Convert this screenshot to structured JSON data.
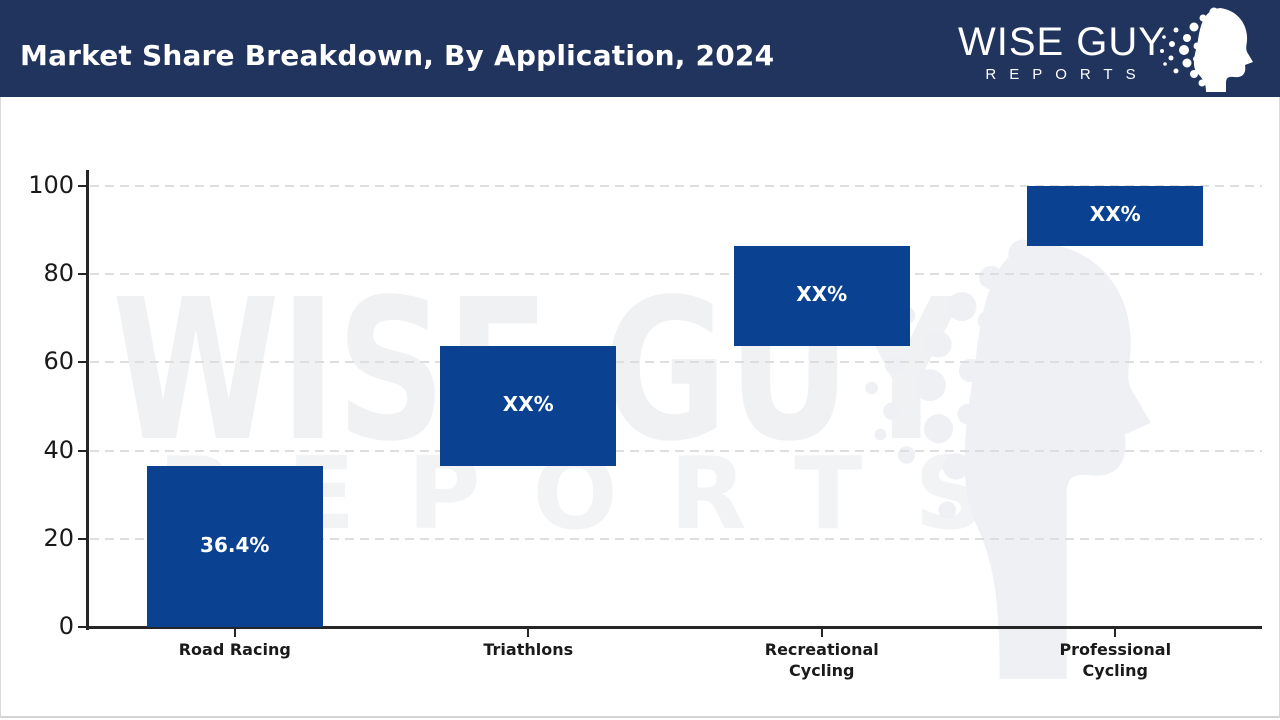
{
  "header": {
    "title": "Market Share Breakdown, By Application, 2024"
  },
  "logo": {
    "line1": "WISE GUY",
    "line2": "REPORTS"
  },
  "watermark": {
    "line1": "WISE GUY",
    "line2": "REPORTS"
  },
  "colors": {
    "header_bg": "#21345e",
    "bar": "#0a4191",
    "bar_label": "#ffffff",
    "axis": "#262626",
    "gridline": "#dedede",
    "watermark": "#f0f1f3"
  },
  "chart_data": {
    "type": "bar",
    "subtype": "waterfall",
    "title": "Market Share Breakdown, By Application, 2024",
    "categories": [
      "Road Racing",
      "Triathlons",
      "Recreational\nCycling",
      "Professional\nCycling"
    ],
    "bars": [
      {
        "category": "Road Racing",
        "start": 0,
        "end": 36.4,
        "label": "36.4%"
      },
      {
        "category": "Triathlons",
        "start": 36.4,
        "end": 63.7,
        "label": "XX%"
      },
      {
        "category": "Recreational Cycling",
        "start": 63.7,
        "end": 86.4,
        "label": "XX%"
      },
      {
        "category": "Professional Cycling",
        "start": 86.4,
        "end": 100,
        "label": "XX%"
      }
    ],
    "xlabel": "",
    "ylabel": "",
    "ylim": [
      0,
      100
    ],
    "yticks": [
      0,
      20,
      40,
      60,
      80,
      100
    ],
    "grid": {
      "horizontal": true,
      "style": "dashed"
    },
    "legend": null
  }
}
